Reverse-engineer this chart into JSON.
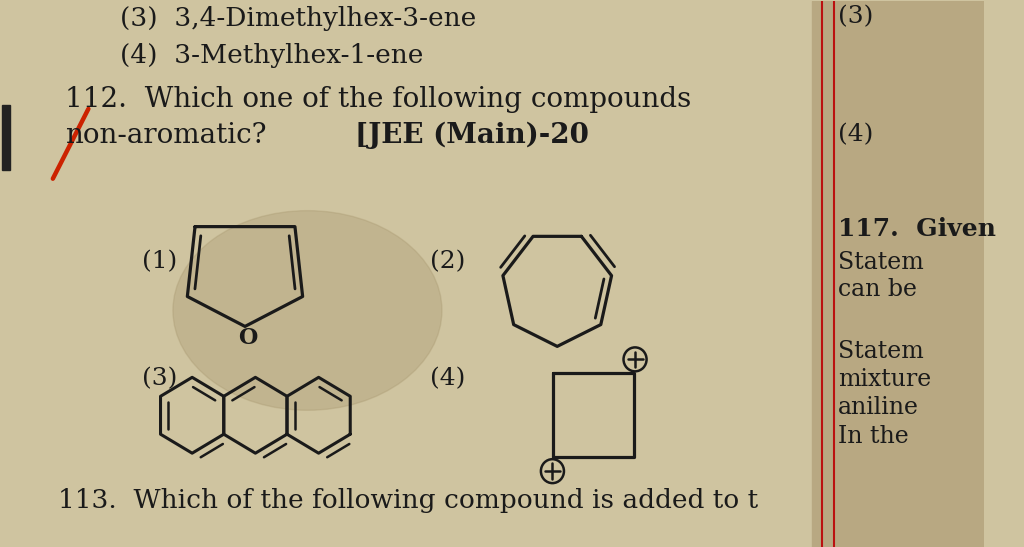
{
  "bg_color": "#cfc4a0",
  "text_color": "#1a1a1a",
  "title": "(3)  3,4-Dimethylhex-3-ene",
  "line2": "(4)  3-Methylhex-1-ene",
  "q112": "112.  Which one of the following compounds",
  "q112b": "non-aromatic?",
  "jee": "[JEE (Main)-20",
  "label1": "(1)",
  "label2": "(2)",
  "label3": "(3)",
  "label4": "(4)",
  "q113": "113.  Which of the following compound is added to t",
  "right_col_3": "(3)",
  "right_col_4": "(4)",
  "right_117": "117.  Given",
  "right_stmt1": "Statem",
  "right_stmt2": "can be",
  "right_stmt3": "Statem",
  "right_stmt4": "mixture",
  "right_stmt5": "aniline",
  "right_stmt6": "In the"
}
